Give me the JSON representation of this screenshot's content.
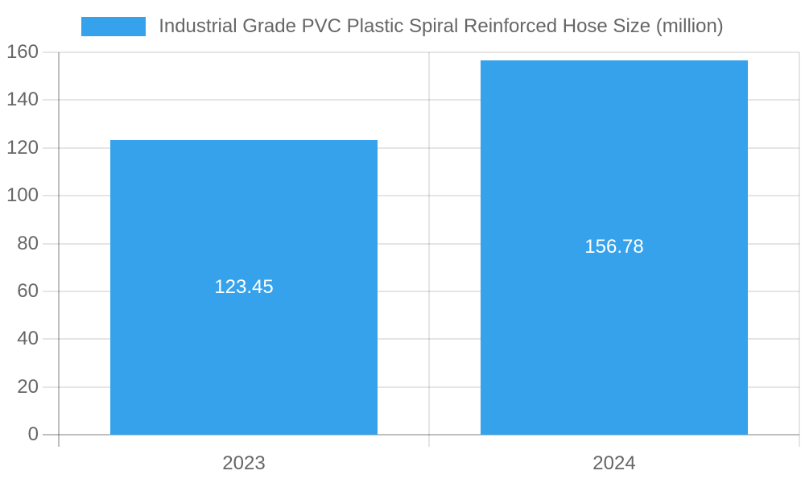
{
  "legend": {
    "label": "Industrial Grade PVC Plastic Spiral Reinforced Hose Size (million)"
  },
  "chart_data": {
    "type": "bar",
    "title": "Industrial Grade PVC Plastic Spiral Reinforced Hose Size (million)",
    "categories": [
      "2023",
      "2024"
    ],
    "series": [
      {
        "name": "Industrial Grade PVC Plastic Spiral Reinforced Hose Size (million)",
        "values": [
          123.45,
          156.78
        ]
      }
    ],
    "data_labels": [
      "123.45",
      "156.78"
    ],
    "xlabel": "",
    "ylabel": "",
    "ylim": [
      0,
      160
    ],
    "yticks": [
      0,
      20,
      40,
      60,
      80,
      100,
      120,
      140,
      160
    ],
    "grid": true,
    "legend_position": "top-center",
    "colors": {
      "bar": "#36A2EB",
      "grid": "rgba(0,0,0,0.1)",
      "zero_line": "rgba(0,0,0,0.25)",
      "tick_label": "#666666",
      "data_label": "#ffffff",
      "background": "#ffffff"
    }
  }
}
